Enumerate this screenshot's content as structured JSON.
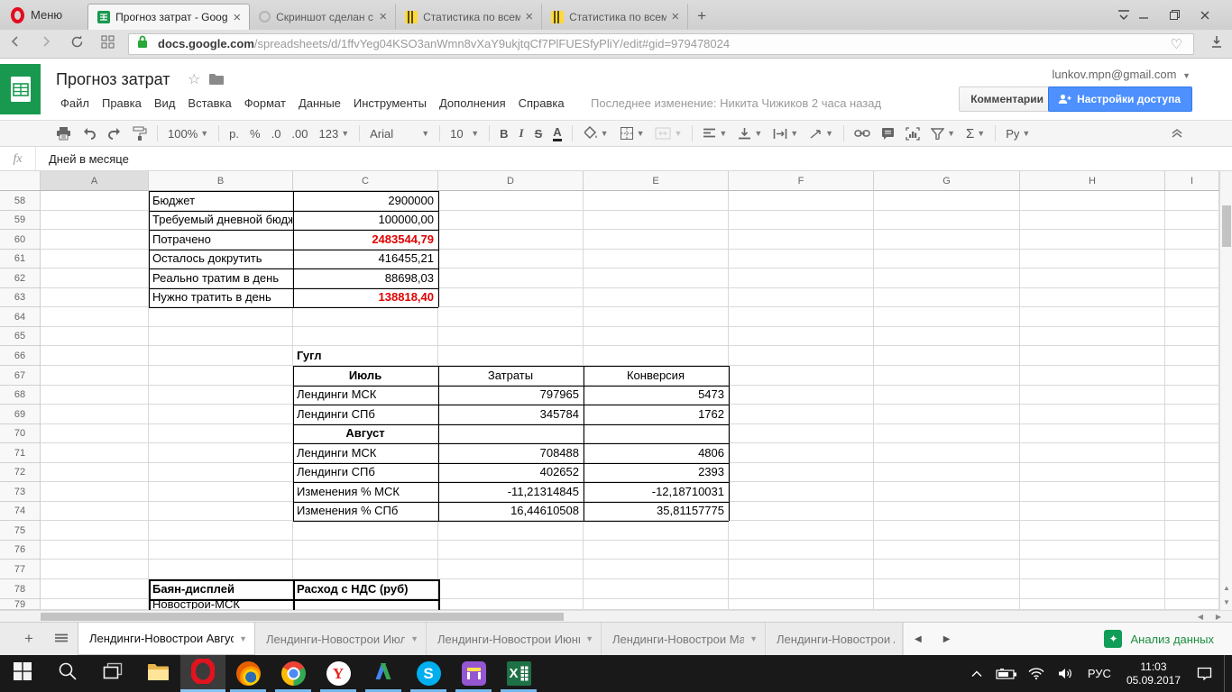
{
  "browser": {
    "menu_button": "Меню",
    "tabs": [
      {
        "title": "Прогноз затрат - Google",
        "icon": "sheets",
        "active": true
      },
      {
        "title": "Скриншот сделан с помо",
        "icon": "generic",
        "active": false
      },
      {
        "title": "Статистика по всем камп",
        "icon": "direct",
        "active": false
      },
      {
        "title": "Статистика по всем камп",
        "icon": "direct",
        "active": false
      }
    ],
    "new_tab": "+",
    "url_host": "docs.google.com",
    "url_path": "/spreadsheets/d/1ffvYeg04KSO3anWmn8vXaY9ukjtqCf7PlFUESfyPliY/edit#gid=979478024"
  },
  "sheets": {
    "title": "Прогноз затрат",
    "menu": [
      "Файл",
      "Правка",
      "Вид",
      "Вставка",
      "Формат",
      "Данные",
      "Инструменты",
      "Дополнения",
      "Справка"
    ],
    "last_edit": "Последнее изменение: Никита Чижиков 2 часа назад",
    "email": "lunkov.mpn@gmail.com",
    "comments_button": "Комментарии",
    "share_button": "Настройки доступа",
    "toolbar": {
      "zoom": "100%",
      "currency": "р.",
      "percent": "%",
      "dec0": ".0",
      "dec00": ".00",
      "formats": "123",
      "font": "Arial",
      "size": "10",
      "bold": "B",
      "italic": "I",
      "strike": "S",
      "color": "A",
      "sum": "Σ",
      "input": "Ру"
    },
    "formula_bar": {
      "label": "fx",
      "value": "Дней в месяце"
    }
  },
  "grid": {
    "col_headers": [
      "A",
      "B",
      "C",
      "D",
      "E",
      "F",
      "G",
      "H",
      "I"
    ],
    "selected_column": "A",
    "rows": [
      {
        "n": 58,
        "cells": [
          [
            "B",
            "Бюджет",
            "l"
          ],
          [
            "C",
            "2900000",
            "r"
          ]
        ]
      },
      {
        "n": 59,
        "cells": [
          [
            "B",
            "Требуемый дневной бюдж",
            "l"
          ],
          [
            "C",
            "100000,00",
            "r"
          ]
        ]
      },
      {
        "n": 60,
        "cells": [
          [
            "B",
            "Потрачено",
            "l"
          ],
          [
            "C",
            "2483544,79",
            "r red"
          ]
        ]
      },
      {
        "n": 61,
        "cells": [
          [
            "B",
            "Осталось докрутить",
            "l"
          ],
          [
            "C",
            "416455,21",
            "r"
          ]
        ]
      },
      {
        "n": 62,
        "cells": [
          [
            "B",
            "Реально тратим в день",
            "l"
          ],
          [
            "C",
            "88698,03",
            "r"
          ]
        ]
      },
      {
        "n": 63,
        "cells": [
          [
            "B",
            "Нужно тратить в день",
            "l"
          ],
          [
            "C",
            "138818,40",
            "r red"
          ]
        ]
      },
      {
        "n": 64,
        "cells": []
      },
      {
        "n": 65,
        "cells": []
      },
      {
        "n": 66,
        "cells": [
          [
            "C",
            "Гугл",
            "l b"
          ]
        ]
      },
      {
        "n": 67,
        "cells": [
          [
            "C",
            "Июль",
            "c b"
          ],
          [
            "D",
            "Затраты",
            "c"
          ],
          [
            "E",
            "Конверсия",
            "c"
          ]
        ]
      },
      {
        "n": 68,
        "cells": [
          [
            "C",
            "Лендинги МСК",
            "l"
          ],
          [
            "D",
            "797965",
            "r"
          ],
          [
            "E",
            "5473",
            "r"
          ]
        ]
      },
      {
        "n": 69,
        "cells": [
          [
            "C",
            "Лендинги СПб",
            "l"
          ],
          [
            "D",
            "345784",
            "r"
          ],
          [
            "E",
            "1762",
            "r"
          ]
        ]
      },
      {
        "n": 70,
        "cells": [
          [
            "C",
            "Август",
            "c b"
          ]
        ]
      },
      {
        "n": 71,
        "cells": [
          [
            "C",
            "Лендинги МСК",
            "l"
          ],
          [
            "D",
            "708488",
            "r"
          ],
          [
            "E",
            "4806",
            "r"
          ]
        ]
      },
      {
        "n": 72,
        "cells": [
          [
            "C",
            "Лендинги СПб",
            "l"
          ],
          [
            "D",
            "402652",
            "r"
          ],
          [
            "E",
            "2393",
            "r"
          ]
        ]
      },
      {
        "n": 73,
        "cells": [
          [
            "C",
            "Изменения % МСК",
            "l"
          ],
          [
            "D",
            "-11,21314845",
            "r"
          ],
          [
            "E",
            "-12,18710031",
            "r"
          ]
        ]
      },
      {
        "n": 74,
        "cells": [
          [
            "C",
            "Изменения % СПб",
            "l"
          ],
          [
            "D",
            "16,44610508",
            "r"
          ],
          [
            "E",
            "35,81157775",
            "r"
          ]
        ]
      },
      {
        "n": 75,
        "cells": []
      },
      {
        "n": 76,
        "cells": []
      },
      {
        "n": 77,
        "cells": []
      },
      {
        "n": 78,
        "cells": [
          [
            "B",
            "Баян-дисплей",
            "l b"
          ],
          [
            "C",
            "Расход с НДС (руб)",
            "l b"
          ]
        ]
      },
      {
        "n": 79,
        "cells": [
          [
            "B",
            "Новострой-МСК",
            "l"
          ]
        ]
      }
    ],
    "border_tables": [
      {
        "c1": "B",
        "c2": "C",
        "r1": 58,
        "r2": 63,
        "w": 1
      },
      {
        "c1": "C",
        "c2": "E",
        "r1": 67,
        "r2": 74,
        "w": 1
      },
      {
        "c1": "B",
        "c2": "C",
        "r1": 78,
        "r2": 79,
        "w": 2
      }
    ]
  },
  "sheet_tabs": {
    "tabs": [
      {
        "label": "Лендинги-Новострои Август",
        "active": true
      },
      {
        "label": "Лендинги-Новострои Июль",
        "active": false
      },
      {
        "label": "Лендинги-Новострои Июнь",
        "active": false
      },
      {
        "label": "Лендинги-Новострои Май",
        "active": false
      },
      {
        "label": "Лендинги-Новострои Ав",
        "active": false,
        "clipped": true
      }
    ],
    "explore_label": "Анализ данных"
  },
  "taskbar": {
    "apps": [
      {
        "id": "start",
        "running": false
      },
      {
        "id": "search",
        "running": false
      },
      {
        "id": "task-view",
        "running": false
      },
      {
        "id": "file-explorer",
        "running": false
      },
      {
        "id": "opera",
        "running": true,
        "active": true
      },
      {
        "id": "firefox",
        "running": true
      },
      {
        "id": "chrome",
        "running": true
      },
      {
        "id": "yandex-browser",
        "running": true
      },
      {
        "id": "google-adwords",
        "running": true
      },
      {
        "id": "skype",
        "running": true
      },
      {
        "id": "joxi",
        "running": true
      },
      {
        "id": "excel",
        "running": true
      }
    ],
    "tray": {
      "lang": "РУС",
      "time": "11:03",
      "date": "05.09.2017"
    }
  }
}
